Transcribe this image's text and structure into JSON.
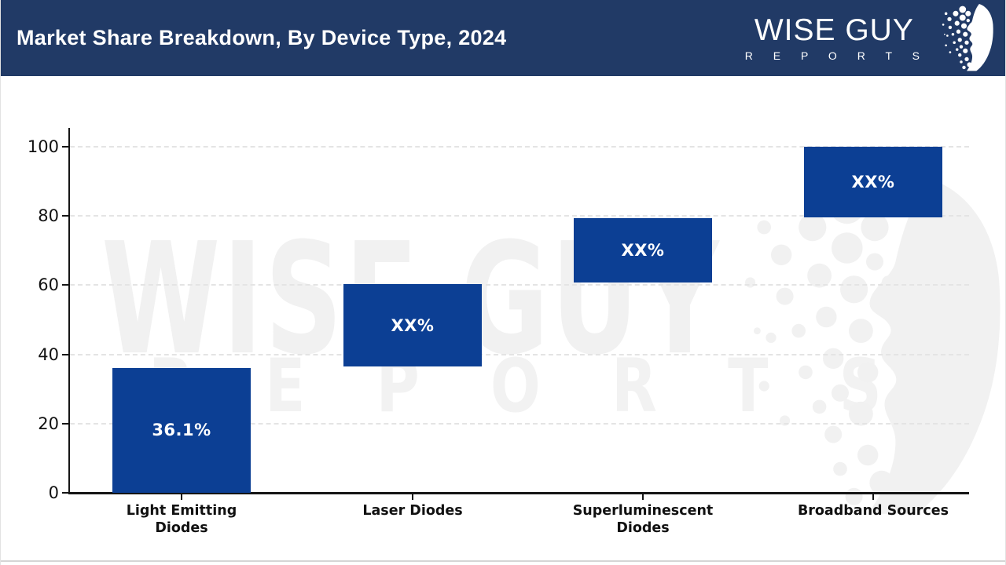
{
  "header": {
    "title": "Market Share Breakdown, By Device Type, 2024",
    "background": "#213a66",
    "logo": {
      "line1": "WISE GUY",
      "line2": "R E P O R T S",
      "head_icon": "dotted-face-profile"
    }
  },
  "watermark": {
    "line1": "WISE GUY",
    "line2": "R E P O R T S",
    "head_icon": "dotted-face-profile",
    "color": "#f1f1f1"
  },
  "chart_data": {
    "type": "bar",
    "subtype": "waterfall-floating-segments",
    "title": "Market Share Breakdown, By Device Type, 2024",
    "categories": [
      "Light Emitting\nDiodes",
      "Laser Diodes",
      "Superluminescent\nDiodes",
      "Broadband Sources"
    ],
    "segments": [
      {
        "category": "Light Emitting Diodes",
        "start": 0,
        "end": 36.1,
        "label": "36.1%"
      },
      {
        "category": "Laser Diodes",
        "start": 36.5,
        "end": 60.3,
        "label": "XX%"
      },
      {
        "category": "Superluminescent Diodes",
        "start": 60.8,
        "end": 79.4,
        "label": "XX%"
      },
      {
        "category": "Broadband Sources",
        "start": 79.6,
        "end": 100,
        "label": "XX%"
      }
    ],
    "yticks": [
      0,
      20,
      40,
      60,
      80,
      100
    ],
    "ylim": [
      0,
      105
    ],
    "xlabel": "",
    "ylabel": "",
    "bar_color": "#0c3f94",
    "bar_label_color": "#ffffff",
    "axis_color": "#151515",
    "grid": "horizontal-dashed",
    "gridline_color": "#e4e4e4",
    "legend": "none"
  }
}
